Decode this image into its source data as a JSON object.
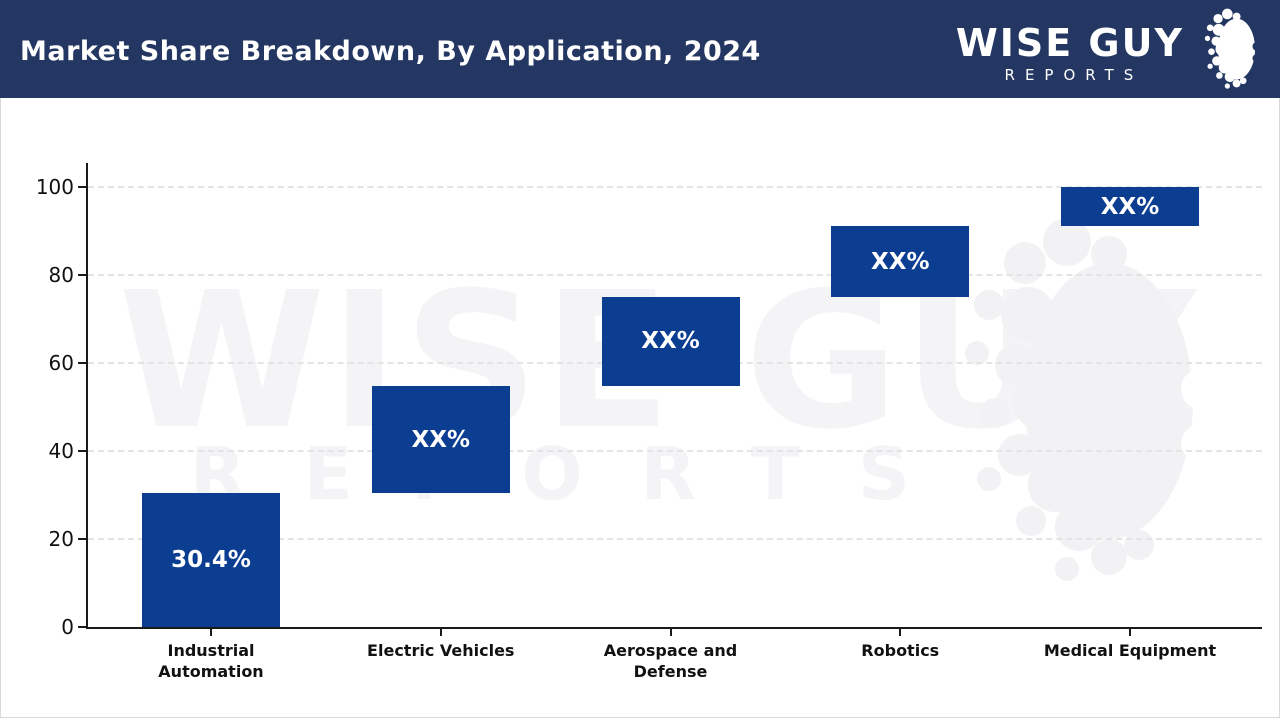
{
  "header": {
    "bg_color": "#243763",
    "title": "Market Share Breakdown, By Application, 2024",
    "logo": {
      "line1": "WISE GUY",
      "line2": "REPORTS"
    }
  },
  "watermark": {
    "line1": "WISE GUY",
    "line2": "REPORTS"
  },
  "chart_data": {
    "type": "bar",
    "variant": "waterfall",
    "title": "Market Share Breakdown, By Application, 2024",
    "categories": [
      "Industrial Automation",
      "Electric Vehicles",
      "Aerospace and Defense",
      "Robotics",
      "Medical Equipment"
    ],
    "bars": [
      {
        "category": "Industrial Automation",
        "label_lines": [
          "Industrial",
          "Automation"
        ],
        "start": 0,
        "end": 30.4,
        "value_label": "30.4%"
      },
      {
        "category": "Electric Vehicles",
        "label_lines": [
          "Electric Vehicles"
        ],
        "start": 30.4,
        "end": 54.8,
        "value_label": "XX%"
      },
      {
        "category": "Aerospace and Defense",
        "label_lines": [
          "Aerospace and",
          "Defense"
        ],
        "start": 54.8,
        "end": 75.0,
        "value_label": "XX%"
      },
      {
        "category": "Robotics",
        "label_lines": [
          "Robotics"
        ],
        "start": 75.0,
        "end": 91.1,
        "value_label": "XX%"
      },
      {
        "category": "Medical Equipment",
        "label_lines": [
          "Medical Equipment"
        ],
        "start": 91.1,
        "end": 100.0,
        "value_label": "XX%"
      }
    ],
    "yticks": [
      0,
      20,
      40,
      60,
      80,
      100
    ],
    "ylim": [
      0,
      105
    ],
    "grid": "horizontal-dashed",
    "legend": "none",
    "bar_color": "#0b3d91",
    "value_label_color": "#ffffff",
    "axis_color": "#1a1a1a",
    "grid_color": "#e4e4e4"
  }
}
